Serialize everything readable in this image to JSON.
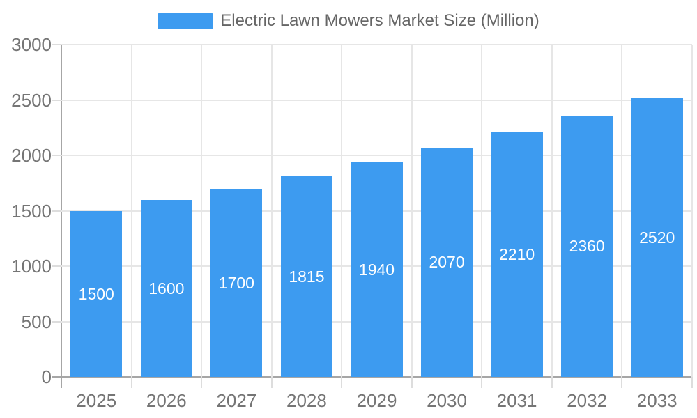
{
  "legend": {
    "label": "Electric Lawn Mowers Market Size (Million)"
  },
  "colors": {
    "bar": "#3d9bf0",
    "axis_line": "#a6a6a6",
    "gridline": "#e6e6e6",
    "tick": "#dddddd",
    "axis_label_text": "#757575",
    "legend_text": "#666666",
    "value_label_text": "#ffffff",
    "background": "#ffffff"
  },
  "chart_data": {
    "type": "bar",
    "title": "Electric Lawn Mowers Market Size (Million)",
    "series_name": "Electric Lawn Mowers Market Size (Million)",
    "categories": [
      "2025",
      "2026",
      "2027",
      "2028",
      "2029",
      "2030",
      "2031",
      "2032",
      "2033"
    ],
    "values": [
      1500,
      1600,
      1700,
      1815,
      1940,
      2070,
      2210,
      2360,
      2520
    ],
    "xlabel": "",
    "ylabel": "",
    "ylim": [
      0,
      3000
    ],
    "ytick_step": 500,
    "grid": true,
    "legend_position": "top",
    "value_labels": "inside-center"
  }
}
